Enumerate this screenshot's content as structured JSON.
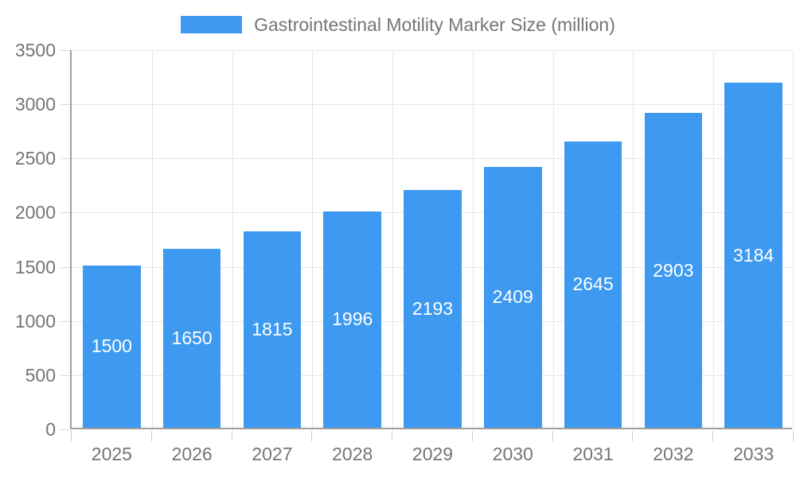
{
  "legend": {
    "label": "Gastrointestinal Motility Marker Size (million)"
  },
  "chart_data": {
    "type": "bar",
    "title": "Gastrointestinal Motility Marker Size (million)",
    "categories": [
      "2025",
      "2026",
      "2027",
      "2028",
      "2029",
      "2030",
      "2031",
      "2032",
      "2033"
    ],
    "values": [
      1500,
      1650,
      1815,
      1996,
      2193,
      2409,
      2645,
      2903,
      3184
    ],
    "xlabel": "",
    "ylabel": "",
    "ylim": [
      0,
      3500
    ],
    "ytick_step": 500,
    "ytick_labels": [
      "0",
      "500",
      "1000",
      "1500",
      "2000",
      "2500",
      "3000",
      "3500"
    ],
    "grid": true,
    "legend_position": "top-center",
    "bar_color": "#3d9af0",
    "bar_label_color": "#ffffff",
    "axis_text_color": "#757575",
    "axis_line_color": "#9e9e9e",
    "gridline_color": "#e6e6e6"
  }
}
